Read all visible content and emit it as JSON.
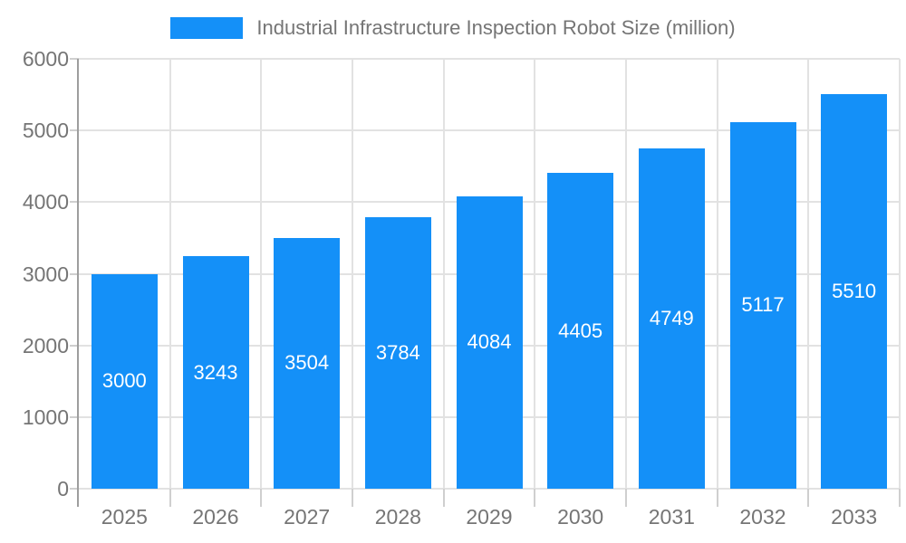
{
  "chart_data": {
    "type": "bar",
    "title": "Industrial Infrastructure Inspection Robot Size (million)",
    "categories": [
      "2025",
      "2026",
      "2027",
      "2028",
      "2029",
      "2030",
      "2031",
      "2032",
      "2033"
    ],
    "series": [
      {
        "name": "Industrial Infrastructure Inspection Robot Size (million)",
        "values": [
          3000,
          3243,
          3504,
          3784,
          4084,
          4405,
          4749,
          5117,
          5510
        ]
      }
    ],
    "xlabel": "",
    "ylabel": "",
    "ylim": [
      0,
      6000
    ],
    "yticks": [
      0,
      1000,
      2000,
      3000,
      4000,
      5000,
      6000
    ],
    "grid": "on",
    "legend_position": "top",
    "bar_value_labels": "inside-center"
  },
  "colors": {
    "bar": "#1490f8",
    "bar_label": "#ffffff",
    "axis_line": "#9e9e9e",
    "grid_line": "#e2e2e2",
    "tick_line": "#cfcfcf",
    "axis_label": "#757575",
    "background": "#ffffff"
  }
}
